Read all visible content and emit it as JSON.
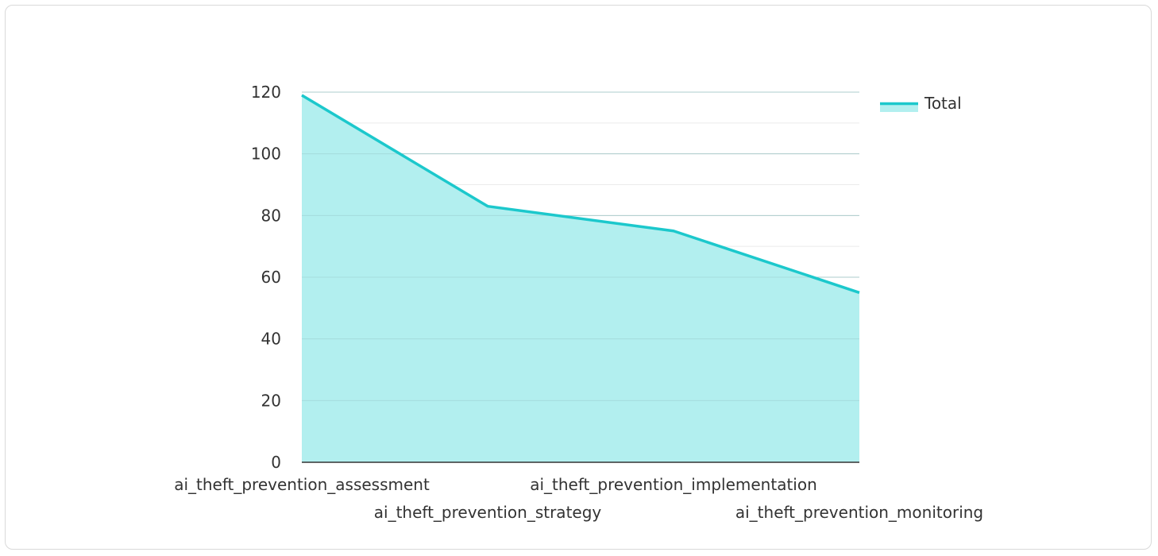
{
  "chart_data": {
    "type": "area",
    "categories": [
      "ai_theft_prevention_assessment",
      "ai_theft_prevention_strategy",
      "ai_theft_prevention_implementation",
      "ai_theft_prevention_monitoring"
    ],
    "series": [
      {
        "name": "Total",
        "values": [
          119,
          83,
          75,
          55
        ],
        "color": "#1cc8cc",
        "fill_color": "#b2efef"
      }
    ],
    "title": "",
    "xlabel": "",
    "ylabel": "",
    "ylim": [
      0,
      120
    ],
    "yticks": [
      0,
      20,
      40,
      60,
      80,
      100,
      120
    ],
    "grid": true,
    "legend": "top-right"
  }
}
